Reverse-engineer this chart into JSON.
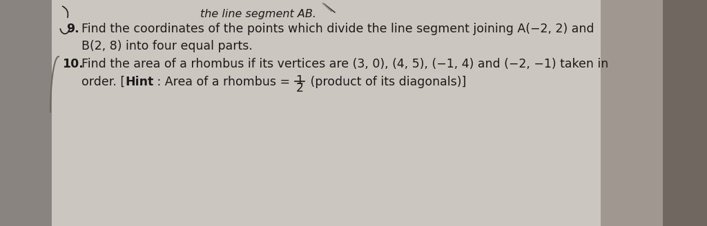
{
  "bg_main": "#b8b4ae",
  "bg_page": "#c8c4bc",
  "bg_right_edge": "#706860",
  "text_color": "#1c1a18",
  "top_partial": "the line segment AB.",
  "q9_num": "9.",
  "q9_line1": "Find the coordinates of the points which divide the line segment joining A(−2, 2) and",
  "q9_line2": "B(2, 8) into four equal parts.",
  "q10_num": "10.",
  "q10_line1": "Find the area of a rhombus if its vertices are (3, 0), (4, 5), (−1, 4) and (−2, −1) taken in",
  "q10_pre": "order. [",
  "q10_hint": "Hint",
  "q10_mid": " : Area of a rhombus = ",
  "q10_num_frac": "1",
  "q10_den_frac": "2",
  "q10_suf": " (product of its diagonals)]",
  "font_size": 12.5,
  "font_size_top": 11.5
}
